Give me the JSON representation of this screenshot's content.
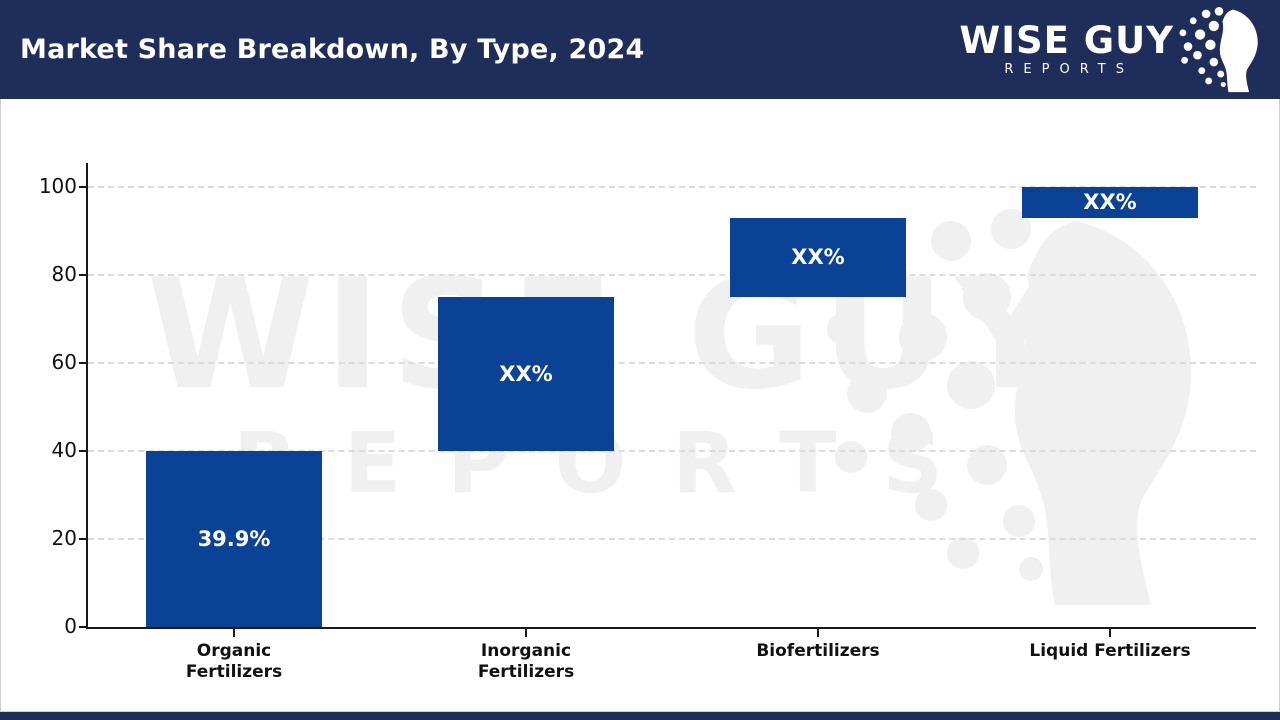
{
  "header": {
    "title": "Market Share Breakdown, By Type, 2024",
    "logo": {
      "name": "WISE GUY",
      "sub": "REPORTS"
    }
  },
  "watermark": {
    "line1": "WISE GUY",
    "line2": "REPORTS"
  },
  "colors": {
    "header_bg": "#1f2d5a",
    "bar": "#0a4296",
    "grid": "#dcdcdc",
    "axis": "#1a1a1a",
    "watermark": "#f0f0f0",
    "figure_border": "#cfcfcf",
    "bar_label": "#ffffff"
  },
  "chart_data": {
    "type": "bar",
    "subtype": "waterfall",
    "title": "Market Share Breakdown, By Type, 2024",
    "categories": [
      "Organic\nFertilizers",
      "Inorganic\nFertilizers",
      "Biofertilizers",
      "Liquid Fertilizers"
    ],
    "segments": [
      {
        "category": "Organic Fertilizers",
        "start": 0,
        "end": 39.9,
        "label": "39.9%"
      },
      {
        "category": "Inorganic Fertilizers",
        "start": 39.9,
        "end": 75,
        "label": "XX%"
      },
      {
        "category": "Biofertilizers",
        "start": 75,
        "end": 93,
        "label": "XX%"
      },
      {
        "category": "Liquid Fertilizers",
        "start": 93,
        "end": 100,
        "label": "XX%"
      }
    ],
    "yticks": [
      0,
      20,
      40,
      60,
      80,
      100
    ],
    "ylim": [
      0,
      105
    ],
    "xlabel": "",
    "ylabel": "",
    "grid": "horizontal-dashed",
    "legend": "none",
    "bar_color": "#0a4296"
  }
}
